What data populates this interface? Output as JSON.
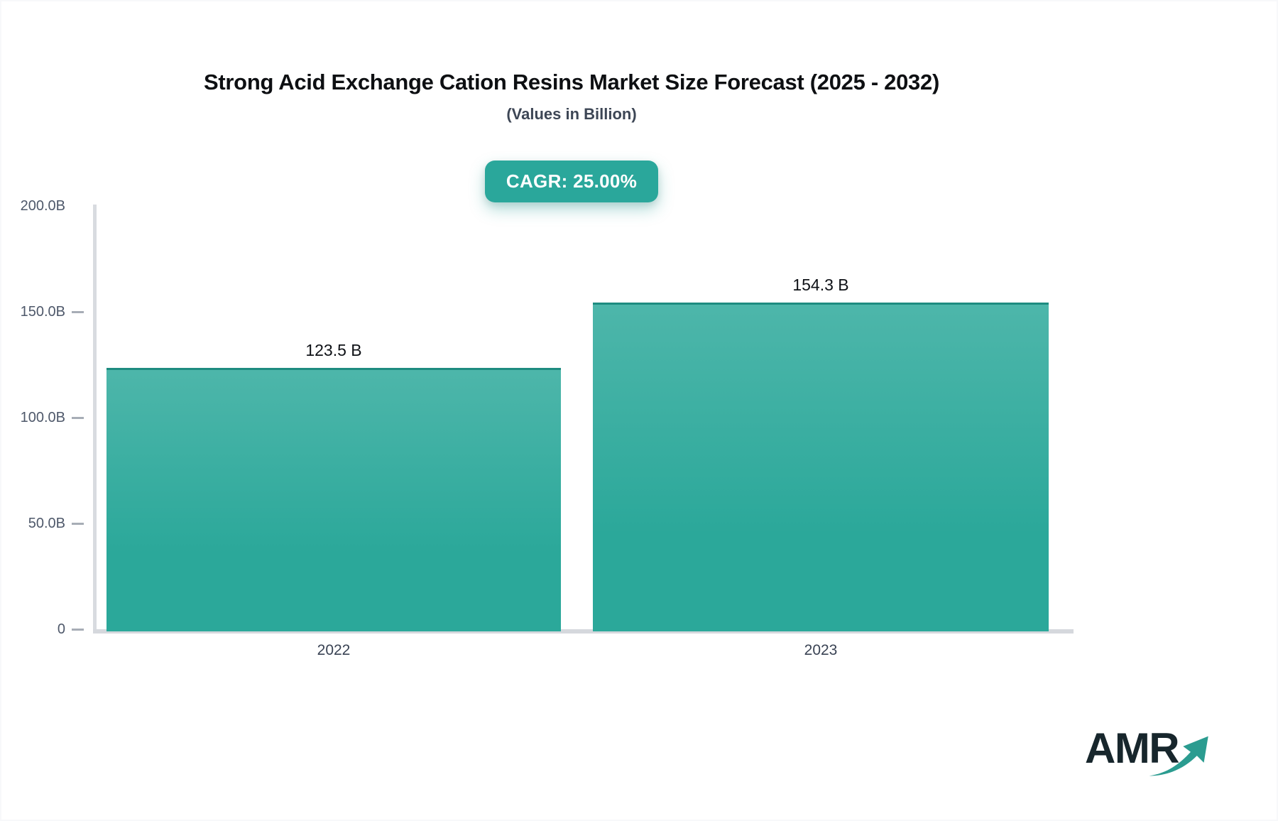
{
  "header": {
    "title": "Strong Acid Exchange Cation Resins Market Size Forecast (2025 - 2032)",
    "subtitle": "(Values in Billion)",
    "cagr_badge": "CAGR: 25.00%"
  },
  "chart_data": {
    "type": "bar",
    "title": "Strong Acid Exchange Cation Resins Market Size Forecast (2025 - 2032)",
    "subtitle": "(Values in Billion)",
    "annotation": "CAGR: 25.00%",
    "categories": [
      "2022",
      "2023"
    ],
    "values": [
      123.5,
      154.3
    ],
    "value_labels": [
      "123.5 B",
      "154.3 B"
    ],
    "xlabel": "",
    "ylabel": "",
    "ylim": [
      0,
      200
    ],
    "yticks": [
      {
        "value": 200,
        "label": "200.0B",
        "tick": false
      },
      {
        "value": 150,
        "label": "150.0B",
        "tick": true
      },
      {
        "value": 100,
        "label": "100.0B",
        "tick": true
      },
      {
        "value": 50,
        "label": "50.0B",
        "tick": true
      },
      {
        "value": 0,
        "label": "0",
        "tick": true
      }
    ],
    "grid": false,
    "legend": "none",
    "bar_color_top": "#4db6aa",
    "bar_color_bottom": "#2ba89a",
    "bar_stroke": "#1e8c80",
    "accent": "#2aa79b"
  },
  "logo": {
    "text": "AMR",
    "arrow_color": "#2b9c90"
  }
}
